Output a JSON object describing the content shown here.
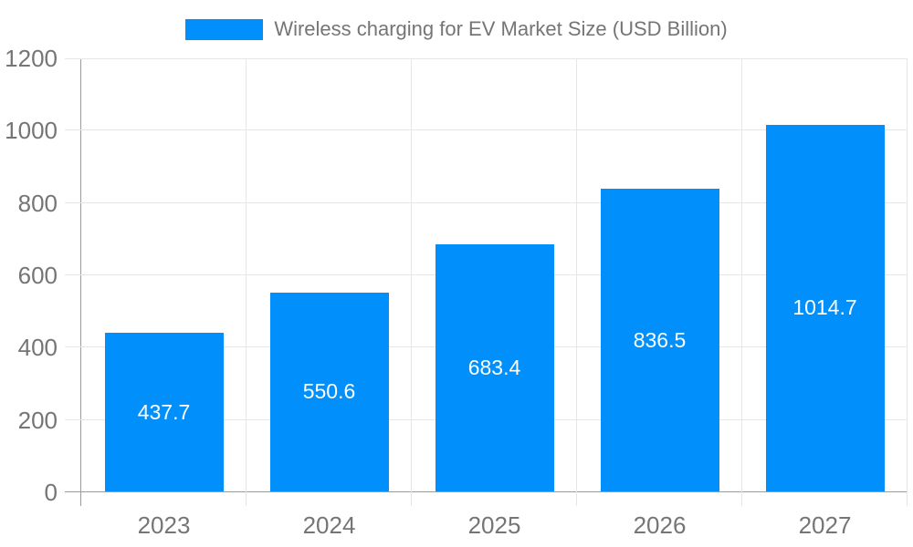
{
  "chart_data": {
    "type": "bar",
    "title": "Wireless charging for EV Market Size (USD Billion)",
    "categories": [
      "2023",
      "2024",
      "2025",
      "2026",
      "2027"
    ],
    "values": [
      437.7,
      550.6,
      683.4,
      836.5,
      1014.7
    ],
    "value_labels": [
      "437.7",
      "550.6",
      "683.4",
      "836.5",
      "1014.7"
    ],
    "series": [
      {
        "name": "Wireless charging for EV Market Size (USD Billion)",
        "values": [
          437.7,
          550.6,
          683.4,
          836.5,
          1014.7
        ]
      }
    ],
    "xlabel": "",
    "ylabel": "",
    "ylim": [
      0,
      1200
    ],
    "yticks": [
      0,
      200,
      400,
      600,
      800,
      1000,
      1200
    ],
    "grid": true,
    "legend_position": "top-center",
    "colors": {
      "bar": "#008FFB",
      "text": "#757575",
      "value_label": "#ffffff",
      "gridline": "#e6e6e6",
      "axis": "#9b9b9b"
    }
  }
}
